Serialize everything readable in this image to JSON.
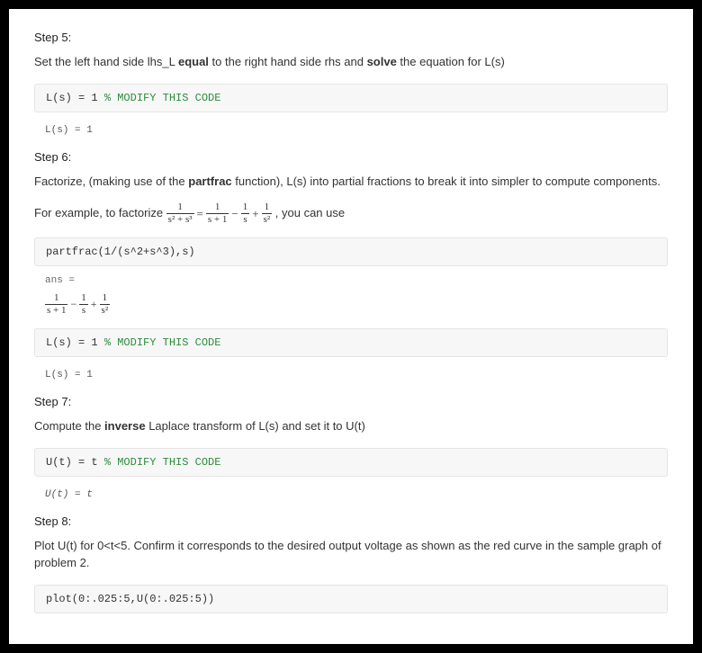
{
  "step5": {
    "title": "Step 5:",
    "desc_pre": "Set the left hand side lhs_L ",
    "desc_bold1": "equal",
    "desc_mid": " to the right hand side rhs and ",
    "desc_bold2": "solve",
    "desc_post": " the equation for L(s)",
    "code_lhs": "L(s) = 1 ",
    "code_comment": "% MODIFY THIS CODE",
    "output": "L(s) = 1"
  },
  "step6": {
    "title": "Step 6:",
    "desc_pre": "Factorize, (making use of the ",
    "desc_bold": "partfrac",
    "desc_post": " function), L(s) into partial fractions to break it into simpler to compute components.",
    "example_pre": "For example, to factorize ",
    "example_post": ", you can use",
    "frac1_num": "1",
    "frac1_den": "s² + s³",
    "eq": " = ",
    "frac2_num": "1",
    "frac2_den": "s + 1",
    "minus": " − ",
    "frac3_num": "1",
    "frac3_den": "s",
    "plus": " + ",
    "frac4_num": "1",
    "frac4_den": "s²",
    "code1": "partfrac(1/(s^2+s^3),s)",
    "ans_label": "ans =",
    "code2_lhs": "L(s) = 1 ",
    "code2_comment": "% MODIFY THIS CODE",
    "output2": "L(s) = 1"
  },
  "step7": {
    "title": "Step 7:",
    "desc_pre": "Compute the ",
    "desc_bold": "inverse",
    "desc_post": " Laplace transform of L(s) and set it to U(t)",
    "code_lhs": "U(t) = t ",
    "code_comment": "% MODIFY THIS CODE",
    "output": "U(t) = t"
  },
  "step8": {
    "title": "Step 8:",
    "desc": "Plot U(t) for 0<t<5. Confirm it corresponds to the desired output voltage as shown as the red curve in the sample graph of problem 2.",
    "code": "plot(0:.025:5,U(0:.025:5))"
  }
}
